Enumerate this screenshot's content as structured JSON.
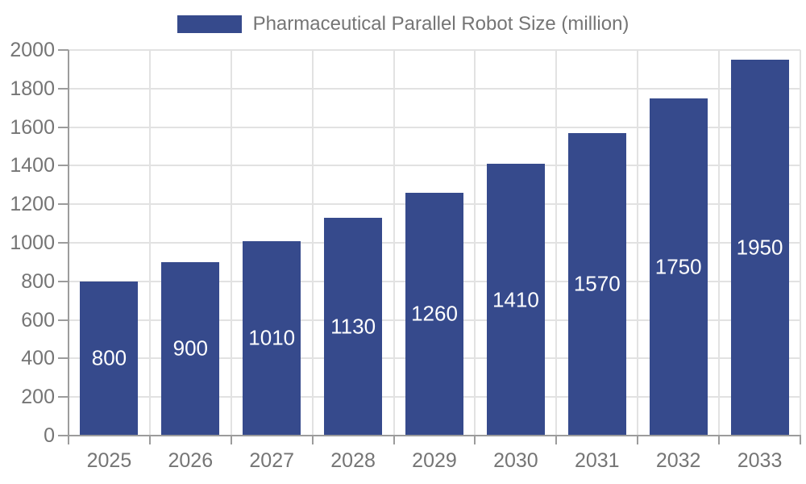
{
  "legend": {
    "label": "Pharmaceutical Parallel Robot Size (million)"
  },
  "chart_data": {
    "type": "bar",
    "title": "Pharmaceutical Parallel Robot Size (million)",
    "categories": [
      "2025",
      "2026",
      "2027",
      "2028",
      "2029",
      "2030",
      "2031",
      "2032",
      "2033"
    ],
    "values": [
      800,
      900,
      1010,
      1130,
      1260,
      1410,
      1570,
      1750,
      1950
    ],
    "xlabel": "",
    "ylabel": "",
    "ylim": [
      0,
      2000
    ],
    "yticks": [
      0,
      200,
      400,
      600,
      800,
      1000,
      1200,
      1400,
      1600,
      1800,
      2000
    ],
    "grid": true,
    "legend_position": "top-center",
    "value_labels": "inside-center",
    "colors": {
      "bar": "#364A8C",
      "grid": "#E2E2E2",
      "axis": "#9C9C9C",
      "text": "#757575",
      "value_label": "#FFFFFF",
      "background": "#FFFFFF"
    }
  }
}
